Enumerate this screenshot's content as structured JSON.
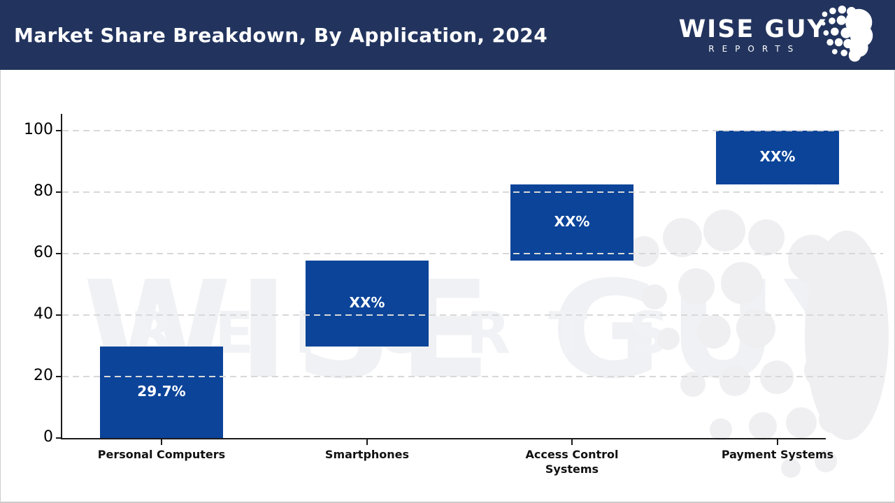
{
  "header": {
    "title": "Market Share Breakdown, By Application, 2024",
    "background_color": "#22345e"
  },
  "logo": {
    "line1": "WISE GUY",
    "line2": "REPORTS"
  },
  "watermark": {
    "line1": "WISE GUY",
    "line2": "REPORTS"
  },
  "chart_data": {
    "type": "bar",
    "subtype": "waterfall-stacked-segments",
    "title": "Market Share Breakdown, By Application, 2024",
    "categories": [
      "Personal Computers",
      "Smartphones",
      "Access Control Systems",
      "Payment Systems"
    ],
    "segments": [
      {
        "category": "Personal Computers",
        "start": 0,
        "end": 29.7,
        "label": "29.7%"
      },
      {
        "category": "Smartphones",
        "start": 29.7,
        "end": 57.7,
        "label": "XX%"
      },
      {
        "category": "Access Control Systems",
        "start": 57.7,
        "end": 82.5,
        "label": "XX%"
      },
      {
        "category": "Payment Systems",
        "start": 82.5,
        "end": 100,
        "label": "XX%"
      }
    ],
    "bar_labels": [
      "29.7%",
      "XX%",
      "XX%",
      "XX%"
    ],
    "ylim": [
      0,
      100
    ],
    "yticks": [
      0,
      20,
      40,
      60,
      80,
      100
    ],
    "grid": "horizontal-dashed",
    "legend": "none",
    "bar_color": "#0b4499",
    "bar_label_color": "#ffffff",
    "axis_color": "#1a1a1a"
  }
}
